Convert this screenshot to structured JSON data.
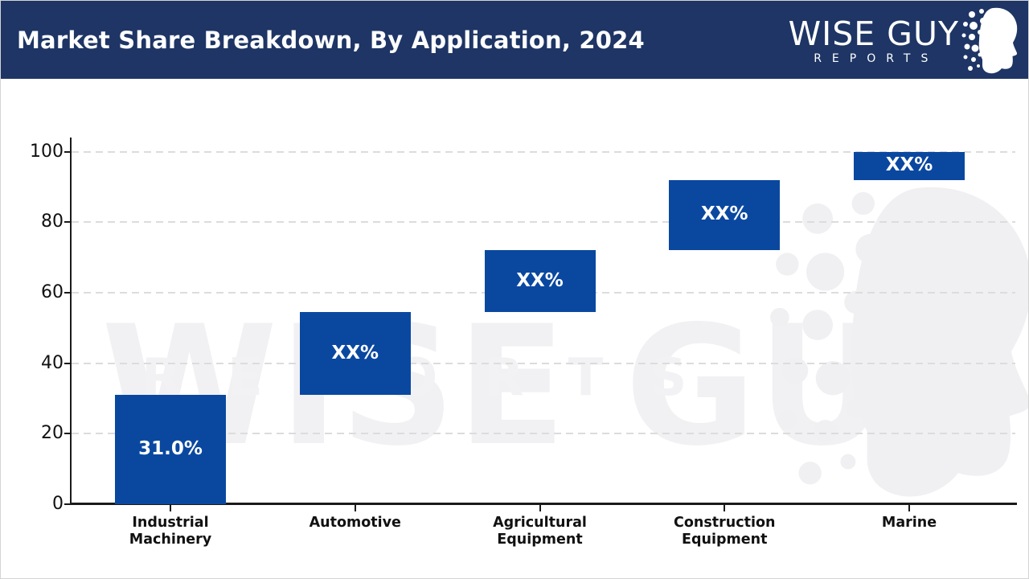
{
  "header": {
    "title": "Market Share Breakdown, By Application, 2024",
    "bg_color": "#1e3565",
    "logo": {
      "line1": "WISE GUY",
      "line2": "REPORTS"
    }
  },
  "watermark": {
    "line1": "WISE GUY",
    "line2": "REPORTS"
  },
  "chart_data": {
    "type": "bar",
    "subtype": "waterfall",
    "title": "Market Share Breakdown, By Application, 2024",
    "xlabel": "",
    "ylabel": "",
    "ylim": [
      0,
      104
    ],
    "yticks": [
      0,
      20,
      40,
      60,
      80,
      100
    ],
    "grid": "horizontal-dashed",
    "legend": "none",
    "bar_color": "#0a48a0",
    "label_color": "#ffffff",
    "categories": [
      "Industrial Machinery",
      "Automotive",
      "Agricultural Equipment",
      "Construction Equipment",
      "Marine"
    ],
    "category_label_lines": [
      [
        "Industrial",
        "Machinery"
      ],
      [
        "Automotive"
      ],
      [
        "Agricultural",
        "Equipment"
      ],
      [
        "Construction",
        "Equipment"
      ],
      [
        "Marine"
      ]
    ],
    "segments": [
      {
        "category": "Industrial Machinery",
        "start": 0,
        "end": 31.0,
        "value": 31.0,
        "label": "31.0%"
      },
      {
        "category": "Automotive",
        "start": 31.0,
        "end": 54.5,
        "value": 23.5,
        "label": "XX%"
      },
      {
        "category": "Agricultural Equipment",
        "start": 54.5,
        "end": 72.0,
        "value": 17.5,
        "label": "XX%"
      },
      {
        "category": "Construction Equipment",
        "start": 72.0,
        "end": 92.0,
        "value": 20.0,
        "label": "XX%"
      },
      {
        "category": "Marine",
        "start": 92.0,
        "end": 100.0,
        "value": 8.0,
        "label": "XX%"
      }
    ]
  }
}
